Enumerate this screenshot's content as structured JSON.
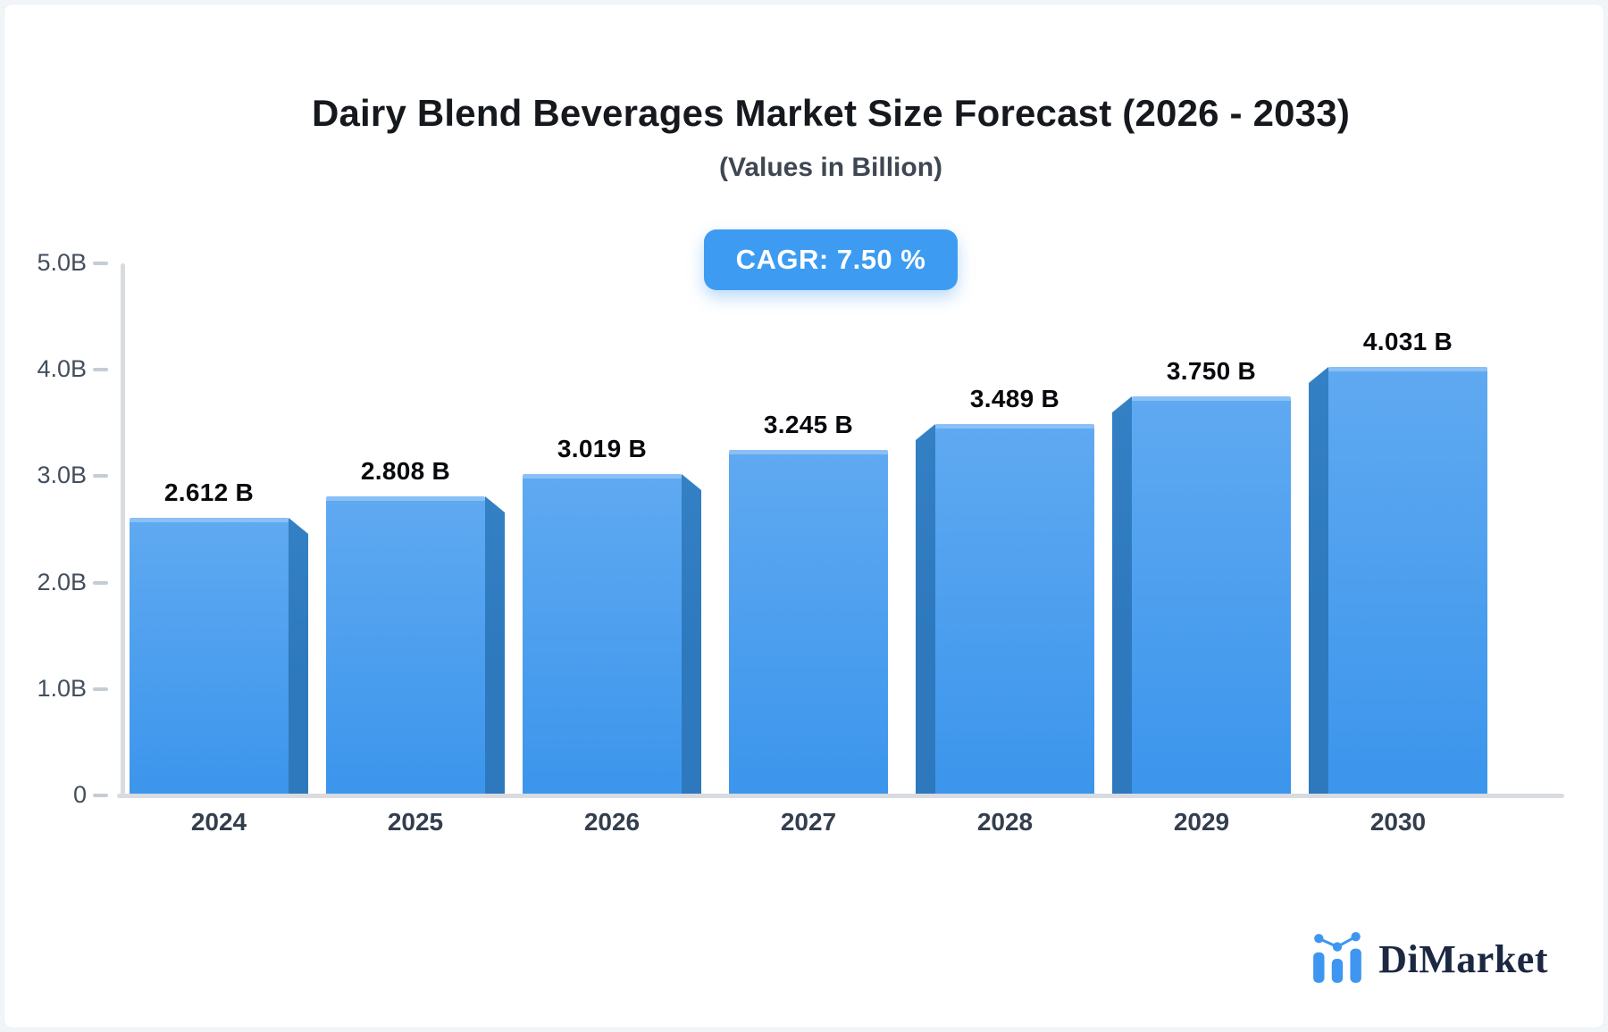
{
  "header": {
    "title": "Dairy Blend Beverages Market Size Forecast (2026 - 2033)",
    "subtitle": "(Values in Billion)"
  },
  "badge": {
    "label": "CAGR: 7.50 %"
  },
  "brand": {
    "name": "DiMarket"
  },
  "colors": {
    "badge_bg": "#3d9cf2",
    "bar_face_top": "#5fa9f1",
    "bar_face_bottom": "#3b95ec",
    "bar_face_edge": "#8ac0f6",
    "bar_side": "#2e79be",
    "axis_line": "#d8dbdf",
    "logo_blue": "#3e96f0"
  },
  "chart_data": {
    "type": "bar",
    "title": "Dairy Blend Beverages Market Size Forecast (2026 - 2033)",
    "subtitle": "(Values in Billion)",
    "cagr": "7.50 %",
    "categories": [
      "2024",
      "2025",
      "2026",
      "2027",
      "2028",
      "2029",
      "2030"
    ],
    "values": [
      2.612,
      2.808,
      3.019,
      3.245,
      3.489,
      3.75,
      4.031
    ],
    "value_labels": [
      "2.612 B",
      "2.808 B",
      "3.019 B",
      "3.245 B",
      "3.489 B",
      "3.750 B",
      "4.031 B"
    ],
    "ylim": [
      0,
      5
    ],
    "y_ticks": [
      {
        "value": 5,
        "label": "5.0B"
      },
      {
        "value": 4,
        "label": "4.0B"
      },
      {
        "value": 3,
        "label": "3.0B"
      },
      {
        "value": 2,
        "label": "2.0B"
      },
      {
        "value": 1,
        "label": "1.0B"
      },
      {
        "value": 0,
        "label": "0"
      }
    ],
    "xlabel": "",
    "ylabel": "",
    "grid": false,
    "legend": false,
    "bar_style": "3d-perspective-blue"
  }
}
